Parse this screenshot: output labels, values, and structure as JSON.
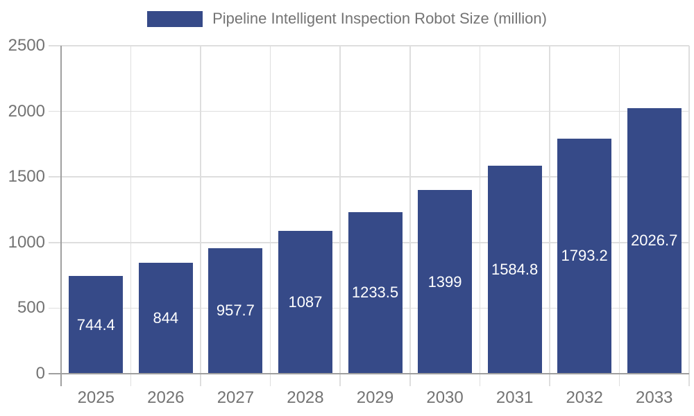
{
  "legend": {
    "label": "Pipeline Intelligent Inspection Robot Size (million)"
  },
  "chart_data": {
    "type": "bar",
    "title": "Pipeline Intelligent Inspection Robot Size (million)",
    "series_name": "Pipeline Intelligent Inspection Robot Size (million)",
    "categories": [
      "2025",
      "2026",
      "2027",
      "2028",
      "2029",
      "2030",
      "2031",
      "2032",
      "2033"
    ],
    "values": [
      744.4,
      844,
      957.7,
      1087,
      1233.5,
      1399,
      1584.8,
      1793.2,
      2026.7
    ],
    "xlabel": "",
    "ylabel": "",
    "y_ticks": [
      0,
      500,
      1000,
      1500,
      2000,
      2500
    ],
    "ylim": [
      0,
      2500
    ],
    "grid": true,
    "legend_position": "top-center",
    "bar_label_position": "inside-center",
    "colors": {
      "bar": "#364A88",
      "grid": "#dedede",
      "axis": "#9f9f9f",
      "text": "#737373",
      "bar_label": "#ffffff",
      "background": "#ffffff"
    }
  }
}
